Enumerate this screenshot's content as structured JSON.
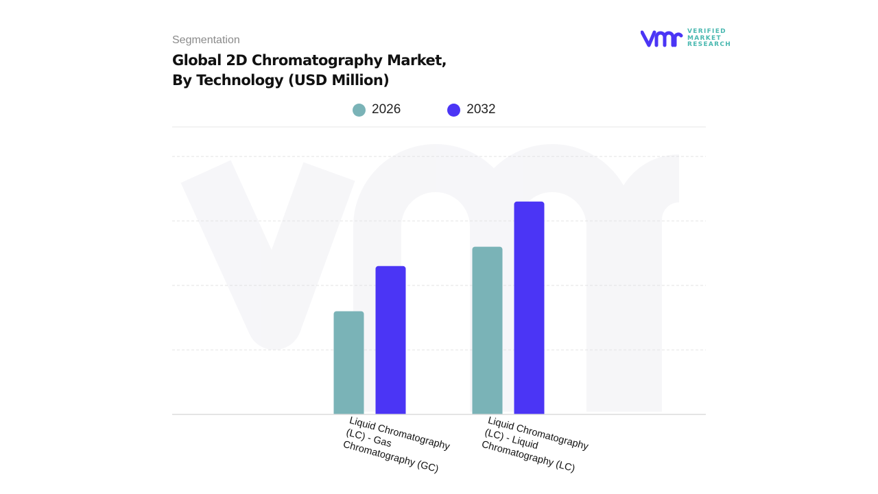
{
  "header": {
    "segment_label": "Segmentation",
    "title_line1": "Global 2D Chromatography Market,",
    "title_line2": "By Technology (USD Million)"
  },
  "logo": {
    "line1": "VERIFIED",
    "line2": "MARKET",
    "line3": "RESEARCH",
    "mark": "vmr"
  },
  "chart_data": {
    "type": "bar",
    "title": "Global 2D Chromatography Market, By Technology (USD Million)",
    "categories": [
      [
        "Liquid Chromatography",
        "(LC) - Gas",
        "Chromatography (GC)"
      ],
      [
        "Liquid Chromatography",
        "(LC) - Liquid",
        "Chromatography (LC)"
      ]
    ],
    "series": [
      {
        "name": "2026",
        "color": "#7ab3b7",
        "values": [
          1.6,
          2.6
        ]
      },
      {
        "name": "2032",
        "color": "#4b35f5",
        "values": [
          2.3,
          3.3
        ]
      }
    ],
    "ylim": [
      0,
      4
    ],
    "y_tick_labels_shown": false,
    "grid": true,
    "legend": "top-center",
    "xlabel": "",
    "ylabel": ""
  }
}
